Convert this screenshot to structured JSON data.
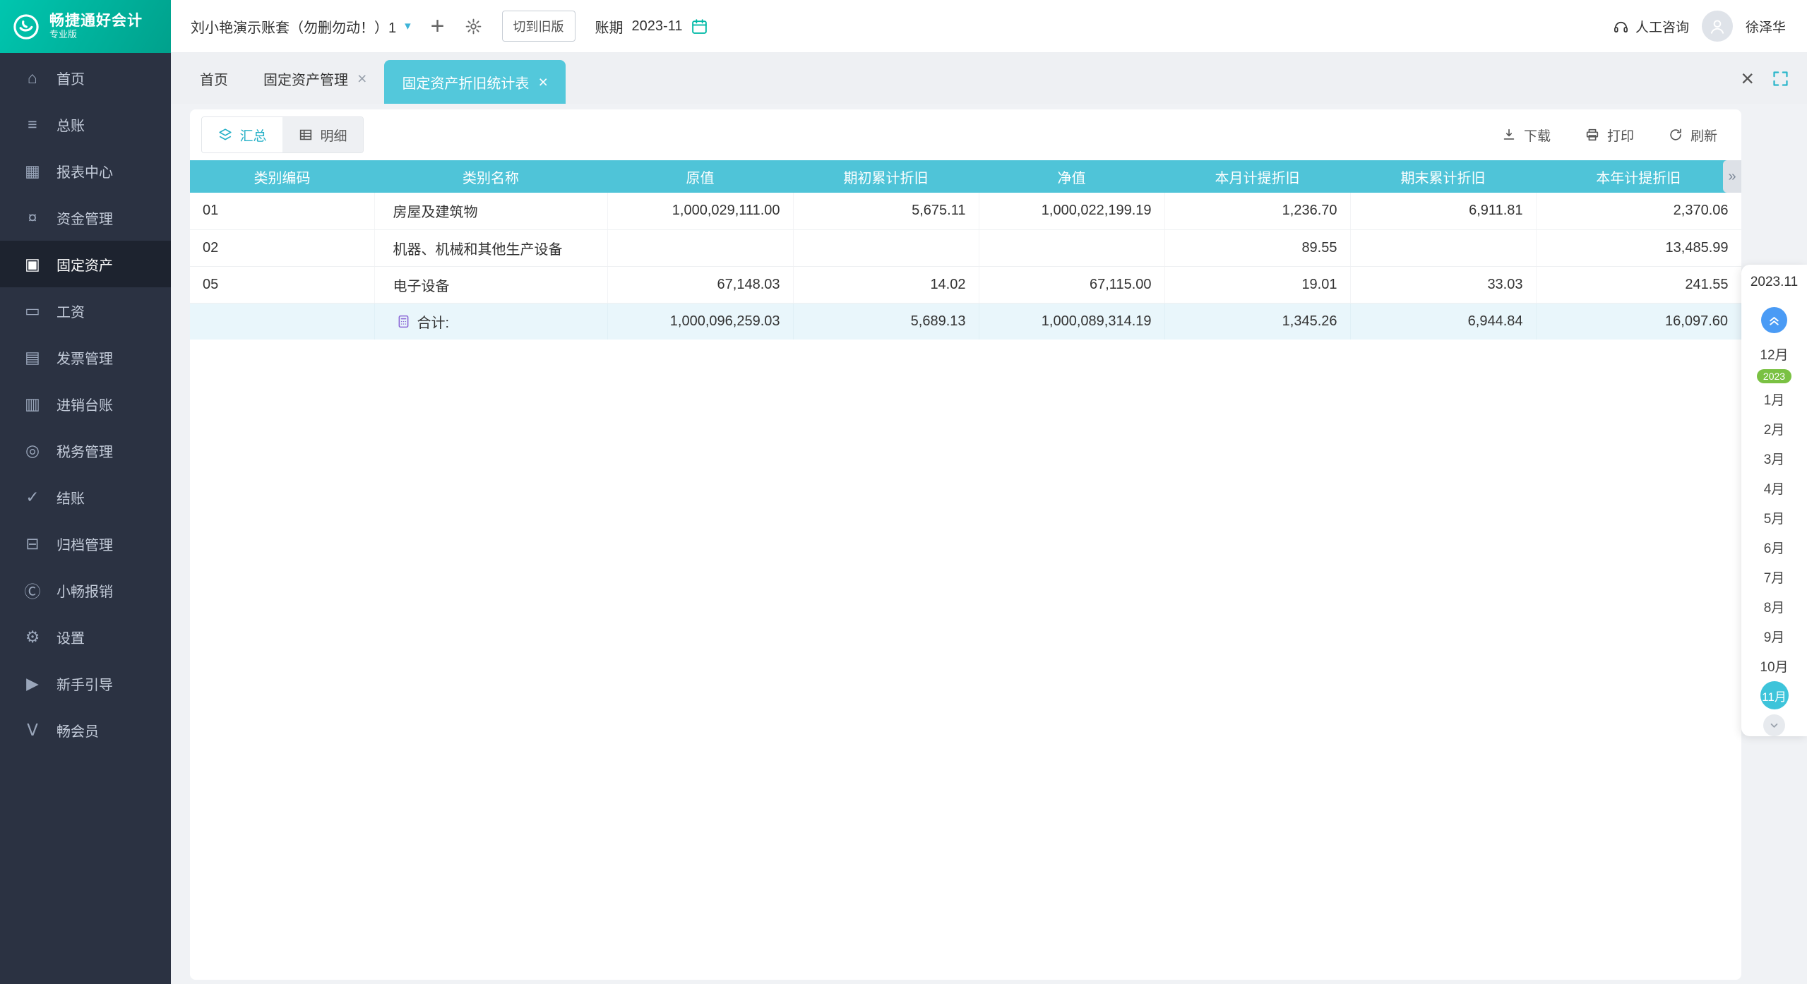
{
  "brand": {
    "title": "畅捷通好会计",
    "subtitle": "专业版"
  },
  "topbar": {
    "account_selector": {
      "value": "刘小艳演示账套（勿删勿动！）1"
    },
    "add_label": "+",
    "switch_old_label": "切到旧版",
    "period_label": "账期",
    "period_value": "2023-11",
    "support_label": "人工咨询",
    "username": "徐泽华"
  },
  "sidebar": {
    "items": [
      {
        "id": "home",
        "label": "首页",
        "icon": "home-icon",
        "active": false
      },
      {
        "id": "general-ledger",
        "label": "总账",
        "icon": "ledger-icon",
        "active": false
      },
      {
        "id": "report-center",
        "label": "报表中心",
        "icon": "report-icon",
        "active": false
      },
      {
        "id": "funds",
        "label": "资金管理",
        "icon": "funds-icon",
        "active": false
      },
      {
        "id": "fixed-assets",
        "label": "固定资产",
        "icon": "fixed-assets-icon",
        "active": true
      },
      {
        "id": "salary",
        "label": "工资",
        "icon": "salary-icon",
        "active": false
      },
      {
        "id": "invoice",
        "label": "发票管理",
        "icon": "invoice-icon",
        "active": false
      },
      {
        "id": "purchase-ledger",
        "label": "进销台账",
        "icon": "purchase-ledger-icon",
        "active": false
      },
      {
        "id": "tax",
        "label": "税务管理",
        "icon": "tax-icon",
        "active": false
      },
      {
        "id": "closing",
        "label": "结账",
        "icon": "closing-icon",
        "active": false
      },
      {
        "id": "archive",
        "label": "归档管理",
        "icon": "archive-icon",
        "active": false
      },
      {
        "id": "reimburse",
        "label": "小畅报销",
        "icon": "reimburse-icon",
        "active": false
      },
      {
        "id": "settings",
        "label": "设置",
        "icon": "settings-icon",
        "active": false
      },
      {
        "id": "guide",
        "label": "新手引导",
        "icon": "guide-icon",
        "active": false
      },
      {
        "id": "member",
        "label": "畅会员",
        "icon": "member-icon",
        "active": false
      }
    ]
  },
  "tabs": {
    "items": [
      {
        "id": "home",
        "label": "首页",
        "closable": false,
        "active": false
      },
      {
        "id": "fixed-assets-mgmt",
        "label": "固定资产管理",
        "closable": true,
        "active": false
      },
      {
        "id": "depreciation-report",
        "label": "固定资产折旧统计表",
        "closable": true,
        "active": true
      }
    ]
  },
  "toolbar": {
    "view_toggle": [
      {
        "id": "summary",
        "label": "汇总",
        "icon": "summary-icon",
        "active": true
      },
      {
        "id": "detail",
        "label": "明细",
        "icon": "detail-icon",
        "active": false
      }
    ],
    "actions": [
      {
        "id": "download",
        "label": "下载",
        "icon": "download-icon"
      },
      {
        "id": "print",
        "label": "打印",
        "icon": "print-icon"
      },
      {
        "id": "refresh",
        "label": "刷新",
        "icon": "refresh-icon"
      }
    ]
  },
  "table": {
    "columns": [
      "类别编码",
      "类别名称",
      "原值",
      "期初累计折旧",
      "净值",
      "本月计提折旧",
      "期末累计折旧",
      "本年计提折旧"
    ],
    "rows": [
      [
        "01",
        "房屋及建筑物",
        "1,000,029,111.00",
        "5,675.11",
        "1,000,022,199.19",
        "1,236.70",
        "6,911.81",
        "2,370.06"
      ],
      [
        "02",
        "机器、机械和其他生产设备",
        "",
        "",
        "",
        "89.55",
        "",
        "13,485.99"
      ],
      [
        "05",
        "电子设备",
        "67,148.03",
        "14.02",
        "67,115.00",
        "19.01",
        "33.03",
        "241.55"
      ]
    ],
    "total": {
      "label": "合计:",
      "values": [
        "1,000,096,259.03",
        "5,689.13",
        "1,000,089,314.19",
        "1,345.26",
        "6,944.84",
        "16,097.60"
      ]
    }
  },
  "date_panel": {
    "current": "2023.11",
    "year_badge": "2023",
    "months": [
      {
        "label": "12月",
        "selected": false
      },
      {
        "label": "1月",
        "selected": false
      },
      {
        "label": "2月",
        "selected": false
      },
      {
        "label": "3月",
        "selected": false
      },
      {
        "label": "4月",
        "selected": false
      },
      {
        "label": "5月",
        "selected": false
      },
      {
        "label": "6月",
        "selected": false
      },
      {
        "label": "7月",
        "selected": false
      },
      {
        "label": "8月",
        "selected": false
      },
      {
        "label": "9月",
        "selected": false
      },
      {
        "label": "10月",
        "selected": false
      },
      {
        "label": "11月",
        "selected": true
      }
    ]
  },
  "colors": {
    "brand_teal": "#00b9a6",
    "accent_cyan": "#4fc4d8",
    "active_tab_cyan": "#53c8db",
    "sidebar_bg": "#2b3242",
    "sidebar_active_bg": "#1d232f",
    "total_row_bg": "#e9f6fb",
    "badge_green": "#7ac143",
    "panel_blue": "#4a9bf5",
    "calc_purple": "#8a66d6"
  }
}
